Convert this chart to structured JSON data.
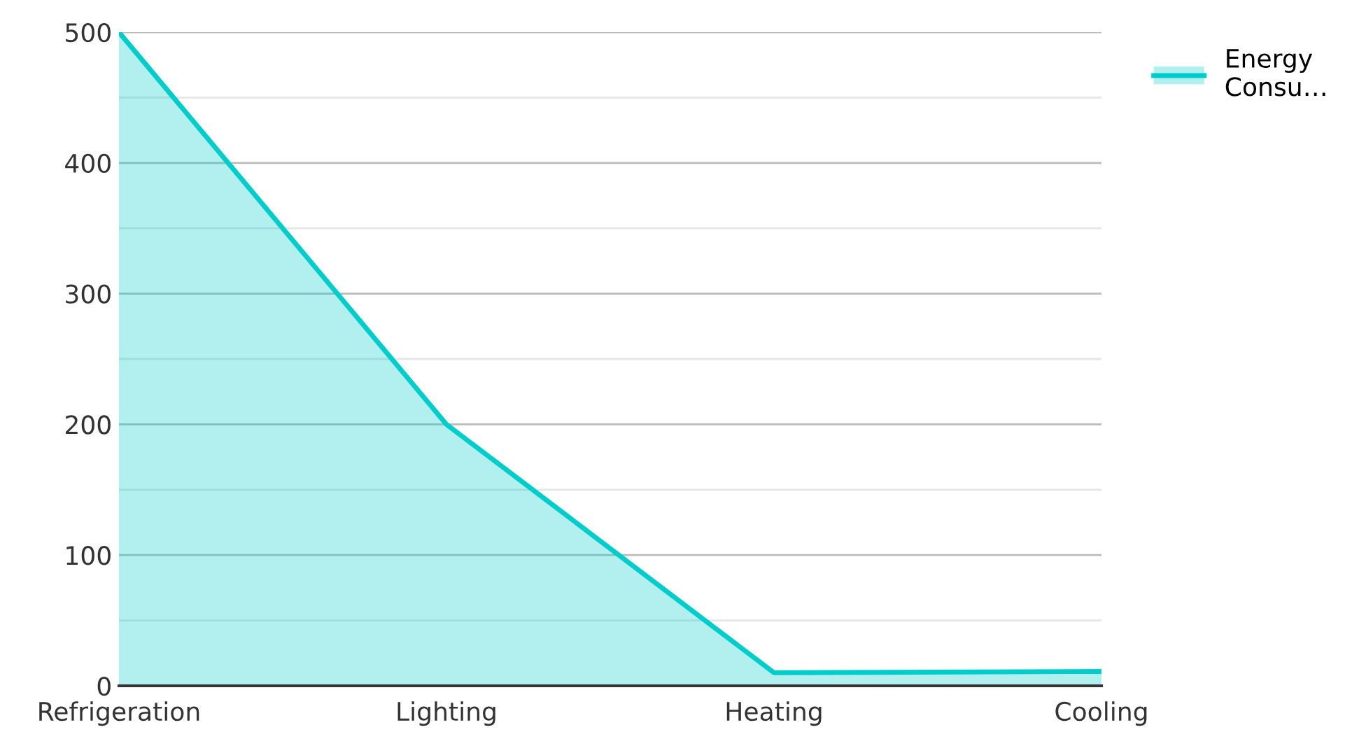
{
  "chart_data": {
    "type": "area",
    "categories": [
      "Refrigeration",
      "Lighting",
      "Heating",
      "Cooling"
    ],
    "series": [
      {
        "name": "Energy Consu…",
        "color": "#00cccc",
        "values": [
          500,
          200,
          10,
          11
        ]
      }
    ],
    "ylim": [
      0,
      500
    ],
    "yticks": [
      0,
      {
        "value": 50,
        "label": null
      },
      100,
      {
        "value": 150,
        "label": null
      },
      200,
      {
        "value": 250,
        "label": null
      },
      300,
      {
        "value": 350,
        "label": null
      },
      400,
      {
        "value": 450,
        "label": null
      },
      500
    ],
    "grid": "y",
    "legend": "top right"
  }
}
